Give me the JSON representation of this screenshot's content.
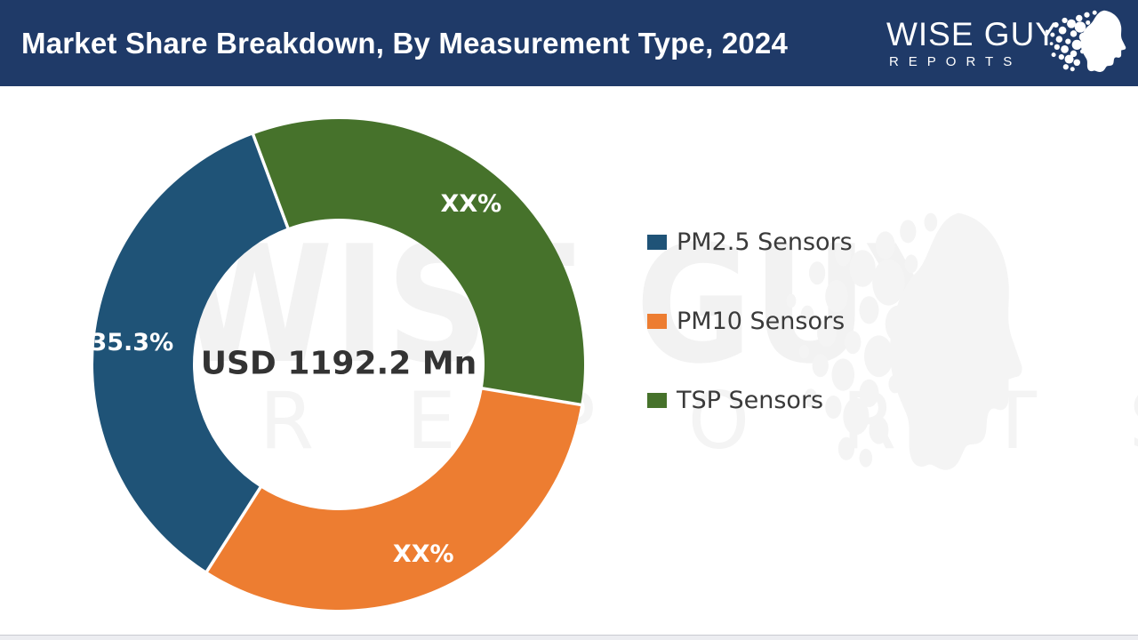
{
  "header": {
    "title": "Market Share Breakdown, By Measurement Type, 2024",
    "bg_color": "#1F3A68",
    "logo": {
      "name": "WISE GUY",
      "sub": "REPORTS"
    }
  },
  "chart_data": {
    "type": "pie",
    "variant": "donut",
    "title": "Market Share Breakdown, By Measurement Type, 2024",
    "center_label": "USD 1192.2 Mn",
    "start_angle_deg": 212.5,
    "legend_position": "right",
    "slices": [
      {
        "name": "PM2.5 Sensors",
        "share_pct": 35.3,
        "label": "35.3%",
        "color": "#1F5377"
      },
      {
        "name": "TSP Sensors",
        "share_pct": 33.3,
        "label": "XX%",
        "color": "#46722B"
      },
      {
        "name": "PM10 Sensors",
        "share_pct": 31.4,
        "label": "XX%",
        "color": "#ED7D31"
      }
    ],
    "legend_order": [
      0,
      2,
      1
    ]
  },
  "watermark": {
    "line1": "WISE GUY",
    "line2": "R E P O R T S"
  }
}
